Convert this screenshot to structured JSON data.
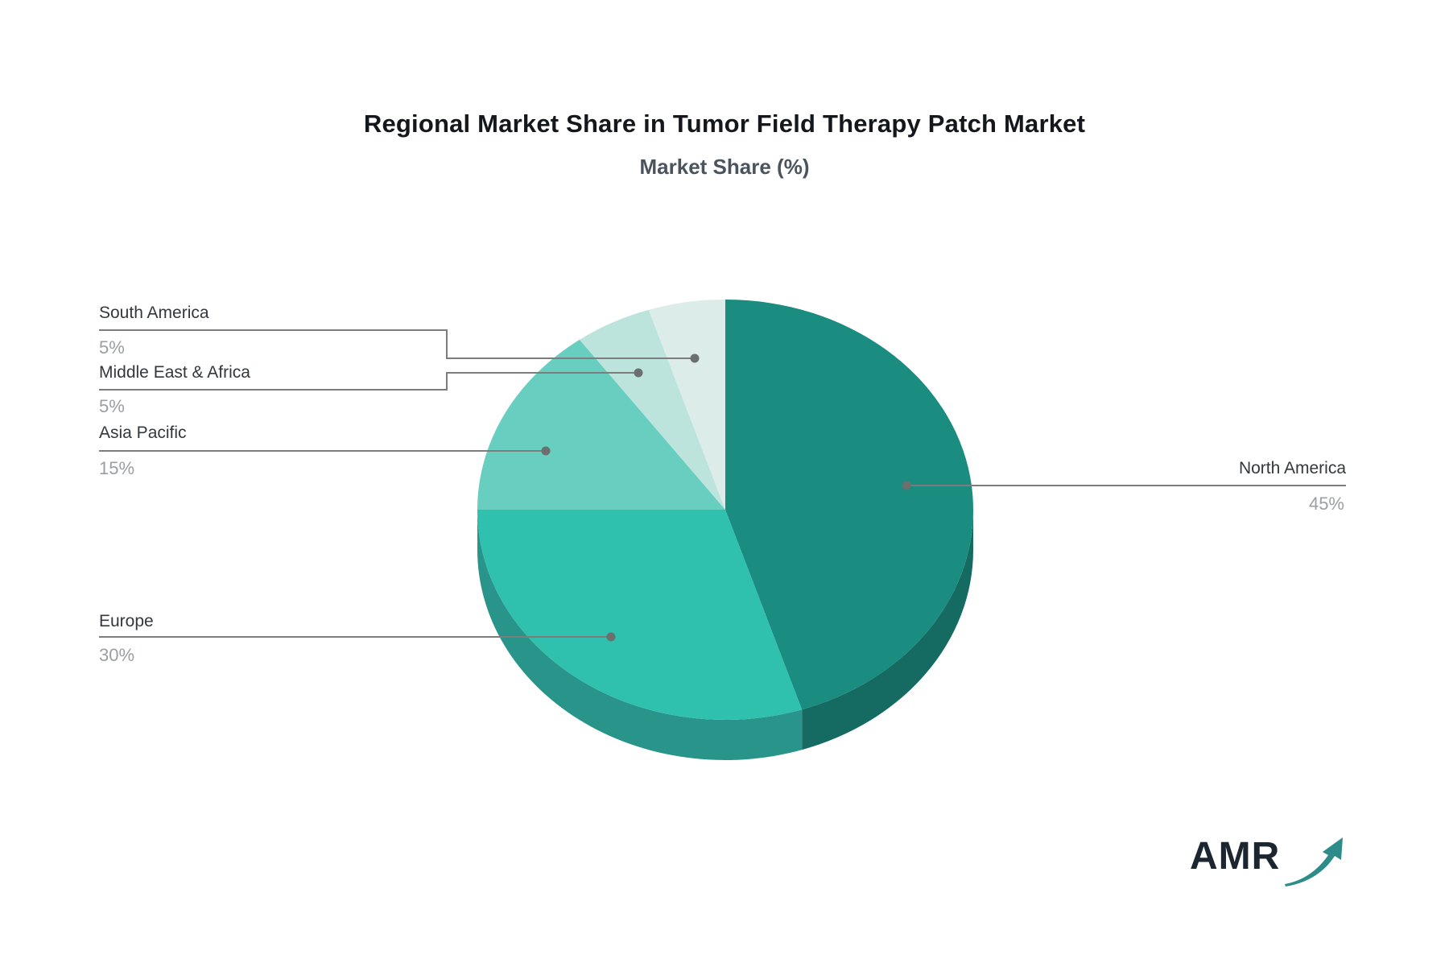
{
  "title": "Regional Market Share in Tumor Field Therapy Patch Market",
  "subtitle": "Market Share (%)",
  "chart_data": {
    "type": "pie",
    "title": "Regional Market Share in Tumor Field Therapy Patch Market",
    "subtitle": "Market Share (%)",
    "unit": "%",
    "style": "3d-pie",
    "direction": "clockwise",
    "start_angle_deg": 0,
    "slices": [
      {
        "label": "North America",
        "value": 45,
        "display": "45%",
        "color": "#1b8c80",
        "side_color": "#156b62"
      },
      {
        "label": "Europe",
        "value": 30,
        "display": "30%",
        "color": "#2fc0ae",
        "side_color": "#29958a"
      },
      {
        "label": "Asia Pacific",
        "value": 15,
        "display": "15%",
        "color": "#68cec0",
        "side_color": "#4fb3a5"
      },
      {
        "label": "Middle East & Africa",
        "value": 5,
        "display": "5%",
        "color": "#bce4dc",
        "side_color": "#9ecfc5"
      },
      {
        "label": "South America",
        "value": 5,
        "display": "5%",
        "color": "#dcece8",
        "side_color": "#c2d9d4"
      }
    ],
    "label_text_color": "#33383c",
    "percent_text_color": "#9aa0a2",
    "leader_line_color": "#7d7d7d",
    "legend_position": "callout-labels"
  },
  "logo": {
    "text": "AMR",
    "text_color": "#1c2630",
    "arrow_color": "#2d8c89"
  }
}
